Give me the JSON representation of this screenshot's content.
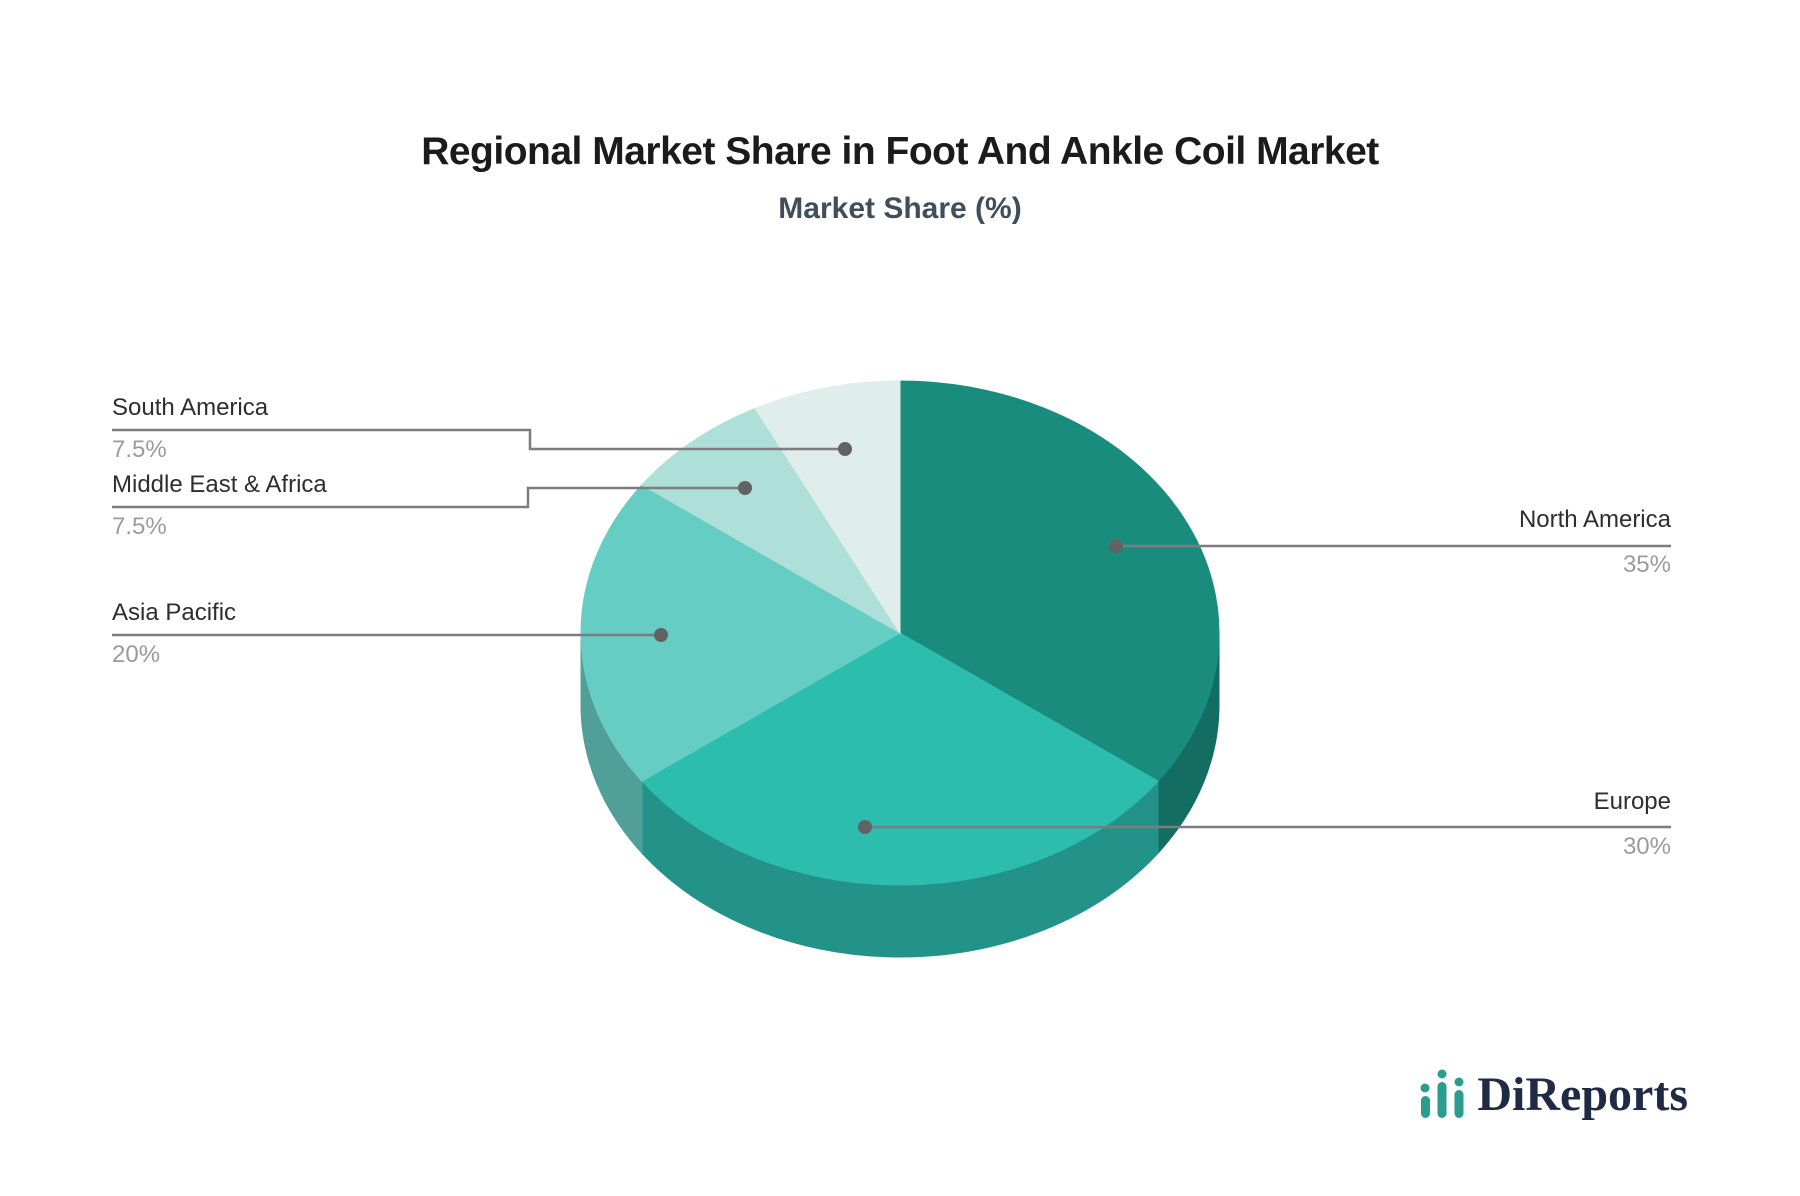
{
  "title": "Regional Market Share in Foot And Ankle Coil Market",
  "subtitle": "Market Share (%)",
  "brand": {
    "name": "DiReports"
  },
  "colors": {
    "title_text": "#1b1b1b",
    "subtitle_text": "#404e5c",
    "label_text": "#2e2e2e",
    "value_text": "#9b9b9b",
    "leader_line": "#7d7d7d",
    "leader_dot": "#636363",
    "logo_text": "#1f2a44",
    "logo_icon": "#2a9d8f",
    "background": "#ffffff"
  },
  "chart_data": {
    "type": "pie",
    "style": "3d",
    "title": "Regional Market Share in Foot And Ankle Coil Market",
    "subtitle": "Market Share (%)",
    "unit": "%",
    "start_angle_clockwise_from_top_deg": 0,
    "slices": [
      {
        "label": "North America",
        "value": 35,
        "value_label": "35%",
        "color": "#1a8c7e"
      },
      {
        "label": "Europe",
        "value": 30,
        "value_label": "30%",
        "color": "#2dbdaf"
      },
      {
        "label": "Asia Pacific",
        "value": 20,
        "value_label": "20%",
        "color": "#66cdc4"
      },
      {
        "label": "Middle East & Africa",
        "value": 7.5,
        "value_label": "7.5%",
        "color": "#aedfd8"
      },
      {
        "label": "South America",
        "value": 7.5,
        "value_label": "7.5%",
        "color": "#dfeeea"
      }
    ],
    "legend_position": "callout-labels",
    "grid": false
  }
}
